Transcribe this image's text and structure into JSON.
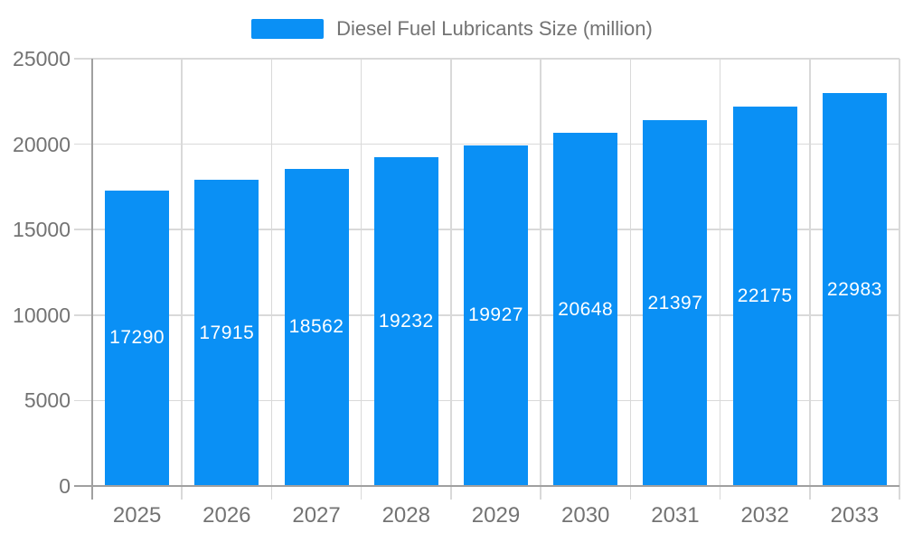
{
  "chart_data": {
    "type": "bar",
    "title": "",
    "xlabel": "",
    "ylabel": "",
    "legend": {
      "label": "Diesel Fuel Lubricants Size (million)",
      "position": "top-center"
    },
    "categories": [
      "2025",
      "2026",
      "2027",
      "2028",
      "2029",
      "2030",
      "2031",
      "2032",
      "2033"
    ],
    "values": [
      17290,
      17915,
      18562,
      19232,
      19927,
      20648,
      21397,
      22175,
      22983
    ],
    "ylim": [
      0,
      25000
    ],
    "yticks": [
      0,
      5000,
      10000,
      15000,
      20000,
      25000
    ],
    "grid": true,
    "colors": {
      "bar": "#0a90f5",
      "value_label": "#ffffff",
      "axis": "#a0a0a0",
      "grid": "#d9d9d9",
      "tick_label": "#737373"
    }
  }
}
